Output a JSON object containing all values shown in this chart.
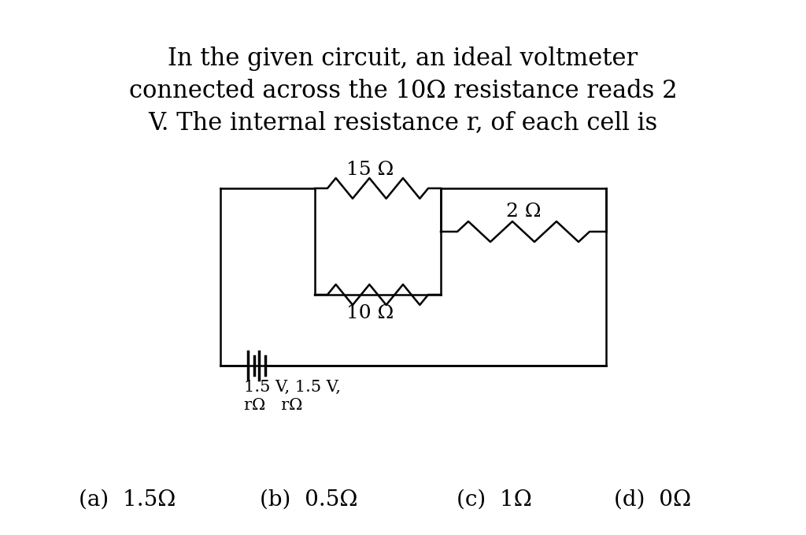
{
  "title_text": "In the given circuit, an ideal voltmeter\nconnected across the 10Ω resistance reads 2\nV. The internal resistance r, of each cell is",
  "background_color": "#ffffff",
  "line_color": "#000000",
  "text_color": "#000000",
  "options": [
    "(a)  1.5Ω",
    "(b)  0.5Ω",
    "(c)  1Ω",
    "(d)  0Ω"
  ],
  "label_15ohm": "15 Ω",
  "label_10ohm": "10 Ω",
  "label_2ohm": "2 Ω",
  "label_battery": "1.5 V, 1.5 V,\nrΩ   rΩ",
  "font_size_title": 22,
  "font_size_labels": 18,
  "font_size_options": 20
}
